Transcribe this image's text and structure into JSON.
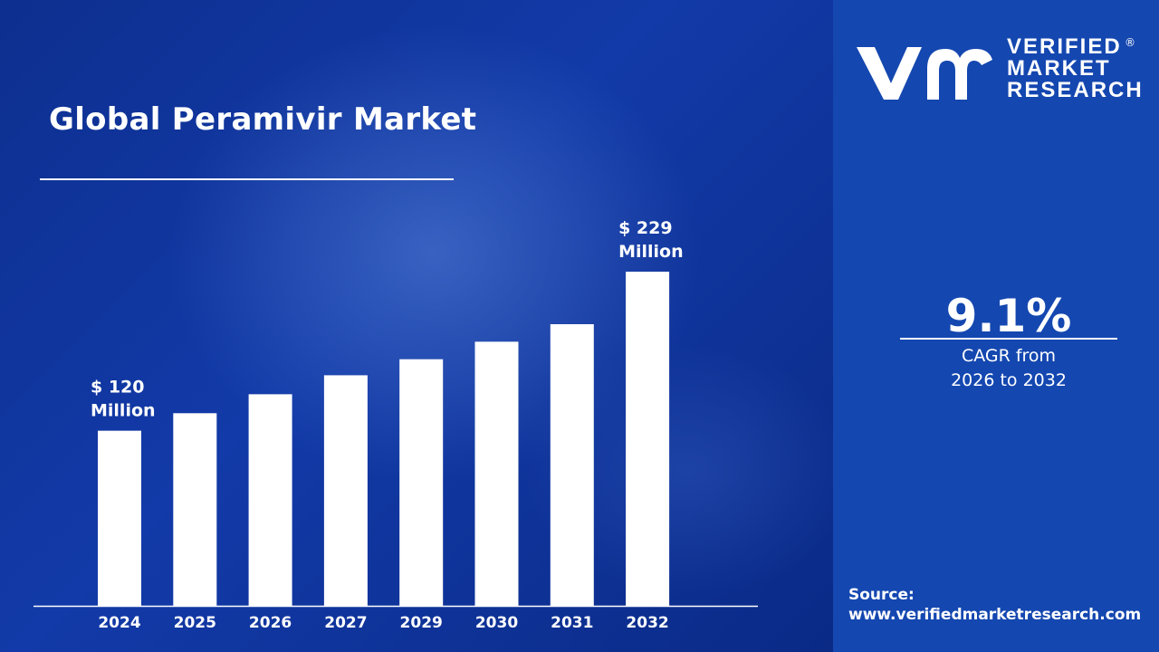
{
  "header": {
    "title": "Global Peramivir Market"
  },
  "brand": {
    "line1": "VERIFIED",
    "line2": "MARKET",
    "line3": "RESEARCH",
    "registered": "®"
  },
  "cagr": {
    "value": "9.1%",
    "label_line1": "CAGR from",
    "label_line2": "2026 to 2032"
  },
  "source": {
    "label": "Source:",
    "url": "www.verifiedmarketresearch.com"
  },
  "colors": {
    "bar": "#ffffff",
    "panel": "#1447b0",
    "background": "#0d2f8f"
  },
  "chart_data": {
    "type": "bar",
    "title": "Global Peramivir Market",
    "categories": [
      "2024",
      "2025",
      "2026",
      "2027",
      "2029",
      "2030",
      "2031",
      "2032"
    ],
    "values": [
      120,
      132,
      145,
      158,
      169,
      181,
      193,
      229
    ],
    "annotations": [
      {
        "category": "2024",
        "line1": "$ 120",
        "line2": "Million"
      },
      {
        "category": "2032",
        "line1": "$ 229",
        "line2": "Million"
      }
    ],
    "value_unit": "USD Million",
    "grid": false
  }
}
